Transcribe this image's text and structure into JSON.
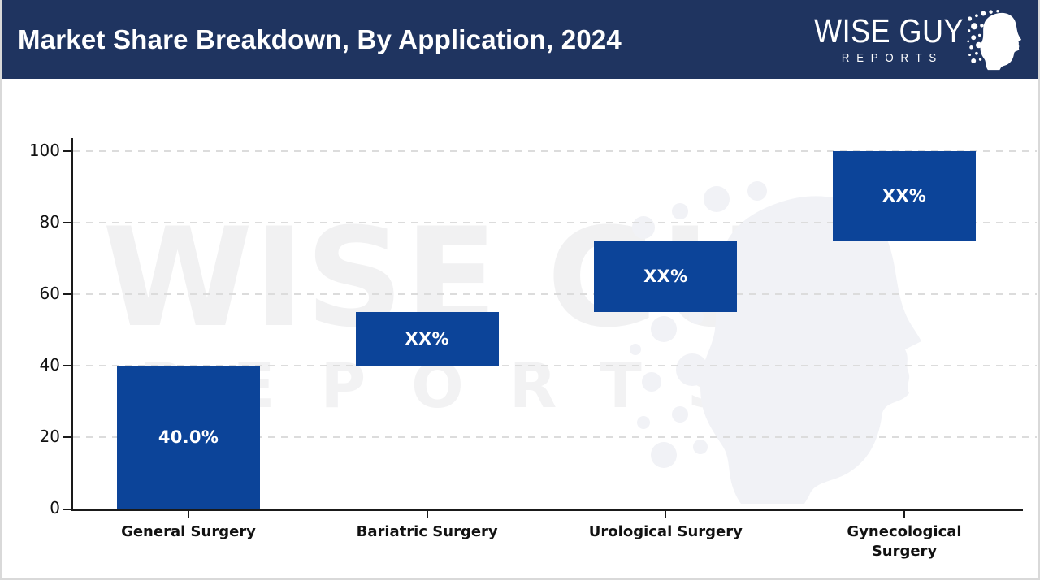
{
  "header": {
    "title": "Market Share Breakdown, By Application, 2024",
    "logo_line1": "WISE GUY",
    "logo_line2": "REPORTS"
  },
  "watermark": {
    "line1": "WISE GUY",
    "line2": "REPORTS"
  },
  "chart_data": {
    "type": "bar",
    "variant": "waterfall",
    "title": "Market Share Breakdown, By Application, 2024",
    "categories": [
      "General Surgery",
      "Bariatric Surgery",
      "Urological Surgery",
      "Gynecological Surgery"
    ],
    "segments": [
      {
        "category": "General Surgery",
        "label": "40.0%",
        "start": 0,
        "end": 40,
        "value": 40.0
      },
      {
        "category": "Bariatric Surgery",
        "label": "XX%",
        "start": 40,
        "end": 55,
        "value": 15
      },
      {
        "category": "Urological Surgery",
        "label": "XX%",
        "start": 55,
        "end": 75,
        "value": 20
      },
      {
        "category": "Gynecological Surgery",
        "label": "XX%",
        "start": 75,
        "end": 100,
        "value": 25
      }
    ],
    "y_ticks": [
      0,
      20,
      40,
      60,
      80,
      100
    ],
    "ylim": [
      0,
      100
    ],
    "xlabel": "",
    "ylabel": "",
    "grid": "horizontal-dashed",
    "legend": "none",
    "colors": {
      "bar": "#0c4499",
      "grid": "#dcdcdc",
      "axis": "#1a1a1a",
      "header_bg": "#1f3460",
      "bar_label_text": "#ffffff",
      "watermark": "#f1f2f6"
    }
  }
}
